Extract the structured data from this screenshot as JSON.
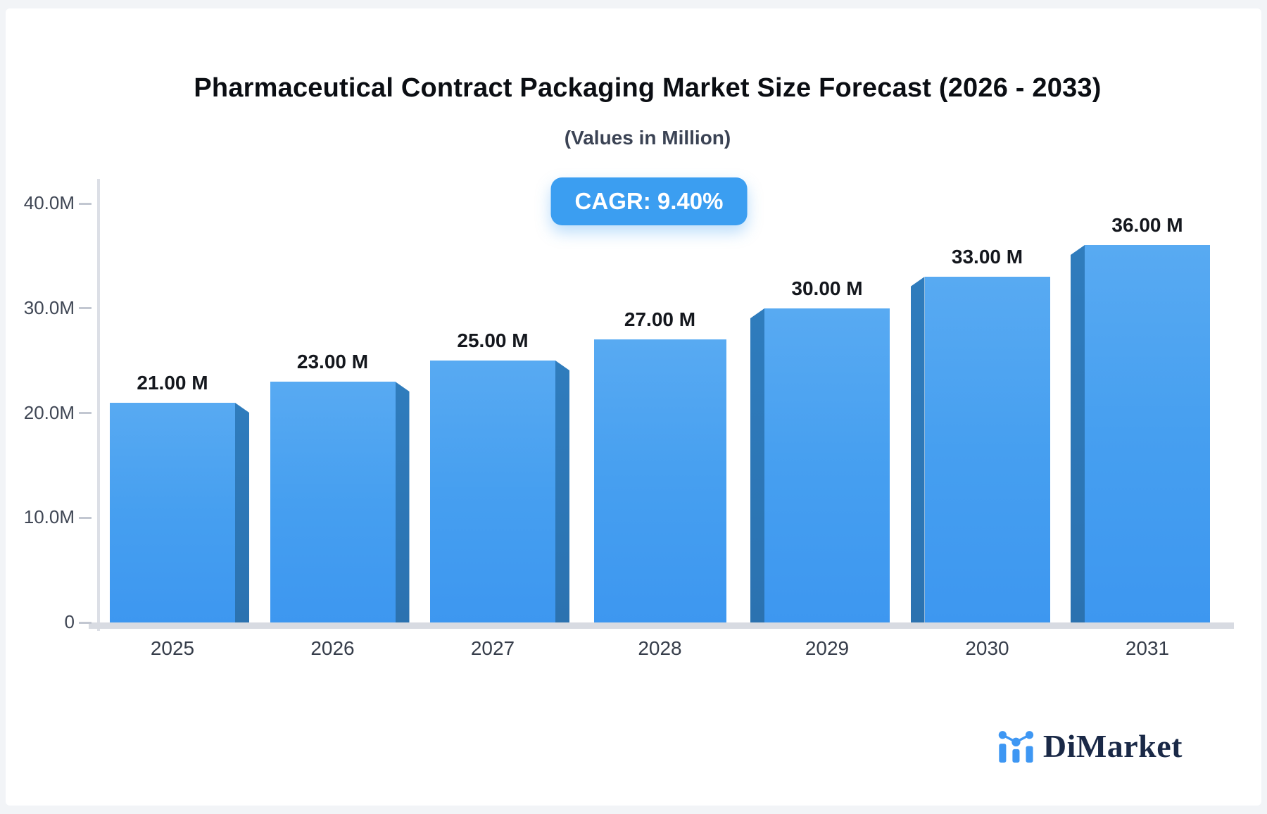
{
  "page": {
    "title": "Pharmaceutical Contract Packaging Market Size Forecast (2026 - 2033)",
    "subtitle": "(Values in Million)",
    "cagr_badge": "CAGR: 9.40%",
    "brand": {
      "name": "DiMarket",
      "icon": "bar-line-chart-icon",
      "icon_color": "#3e97f3",
      "text_color": "#1a2947"
    }
  },
  "chart_data": {
    "type": "bar",
    "title": "Pharmaceutical Contract Packaging Market Size Forecast (2026 - 2033)",
    "subtitle": "(Values in Million)",
    "cagr": "9.40%",
    "unit": "Million",
    "categories": [
      "2025",
      "2026",
      "2027",
      "2028",
      "2029",
      "2030",
      "2031"
    ],
    "values": [
      21,
      23,
      25,
      27,
      30,
      33,
      36
    ],
    "value_labels": [
      "21.00 M",
      "23.00 M",
      "25.00 M",
      "27.00 M",
      "30.00 M",
      "33.00 M",
      "36.00 M"
    ],
    "xlabel": "",
    "ylabel": "",
    "ylim": [
      0,
      40
    ],
    "y_ticks": [
      {
        "value": 0,
        "label": "0"
      },
      {
        "value": 10,
        "label": "10.0M"
      },
      {
        "value": 20,
        "label": "20.0M"
      },
      {
        "value": 30,
        "label": "30.0M"
      },
      {
        "value": 40,
        "label": "40.0M"
      }
    ],
    "grid": false,
    "legend": false,
    "style_3d": true,
    "colors": {
      "bar_top": "#58aaf2",
      "bar_bottom": "#3d97f0",
      "bar_side": "#2d76b6",
      "badge": "#3b9ef1",
      "axis": "#dcdfe6",
      "baseline": "#d8dbe2"
    }
  }
}
